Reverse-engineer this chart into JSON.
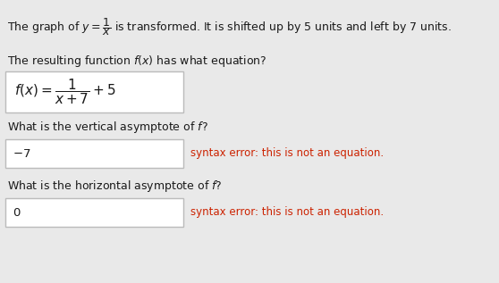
{
  "background_color": "#e9e9e9",
  "box_color": "#ffffff",
  "box_border": "#bbbbbb",
  "error_color": "#cc2200",
  "text_color": "#1a1a1a",
  "font_size_main": 9.0,
  "font_size_answer": 9.5,
  "font_size_error": 8.5
}
